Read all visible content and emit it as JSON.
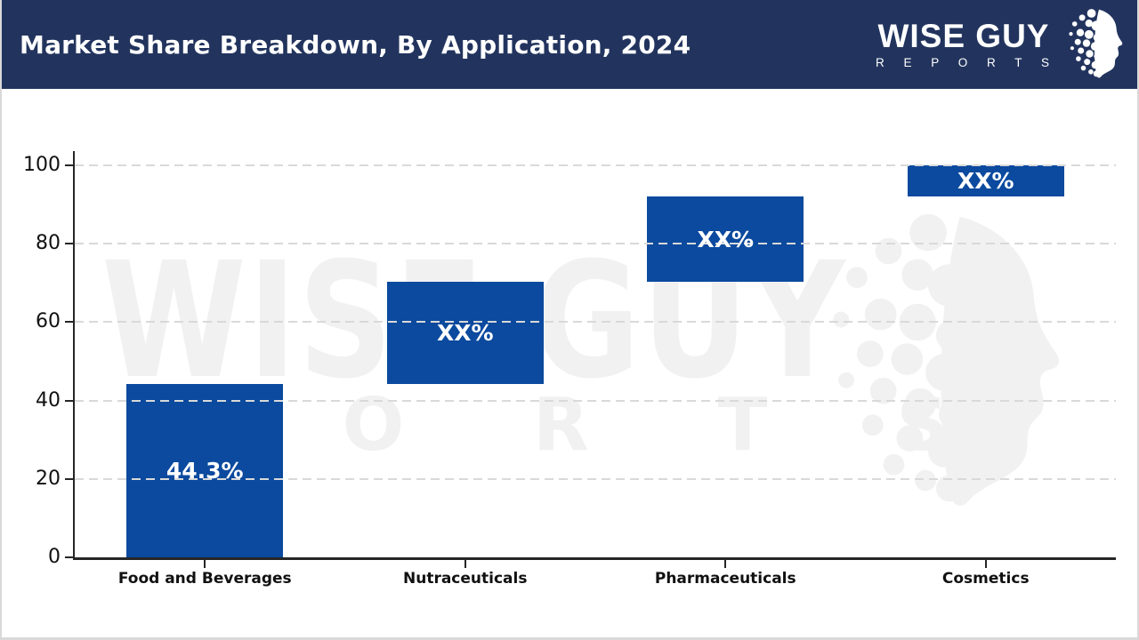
{
  "header": {
    "title": "Market Share Breakdown, By Application, 2024",
    "logo": {
      "line1": "WISE GUY",
      "line2": "R E P O R T S",
      "head_icon": "dotted-head-profile-icon"
    }
  },
  "watermark": {
    "line1": "WISE GUY",
    "line2": "P O R T S",
    "head_icon": "dotted-head-profile-icon"
  },
  "colors": {
    "header_bg": "#22345e",
    "bar_fill": "#0b4a9e",
    "bar_label_text": "#ffffff",
    "grid": "#d9d9d9",
    "axis": "#262626",
    "watermark": "#f1f1f2",
    "card_border": "#d9d9d9"
  },
  "chart_data": {
    "type": "bar",
    "subtype": "waterfall",
    "title": "Market Share Breakdown, By Application, 2024",
    "categories": [
      "Food and Beverages",
      "Nutraceuticals",
      "Pharmaceuticals",
      "Cosmetics"
    ],
    "segments": [
      {
        "category": "Food and Beverages",
        "start": 0,
        "end": 44.3,
        "label": "44.3%"
      },
      {
        "category": "Nutraceuticals",
        "start": 44.3,
        "end": 70.3,
        "label": "XX%"
      },
      {
        "category": "Pharmaceuticals",
        "start": 70.3,
        "end": 92.1,
        "label": "XX%"
      },
      {
        "category": "Cosmetics",
        "start": 92.1,
        "end": 100,
        "label": "XX%"
      }
    ],
    "xlabel": "",
    "ylabel": "",
    "yticks": [
      0,
      20,
      40,
      60,
      80,
      100
    ],
    "ylim": [
      0,
      100
    ],
    "grid": "horizontal-dashed, drawn above bars",
    "legend": "none"
  }
}
